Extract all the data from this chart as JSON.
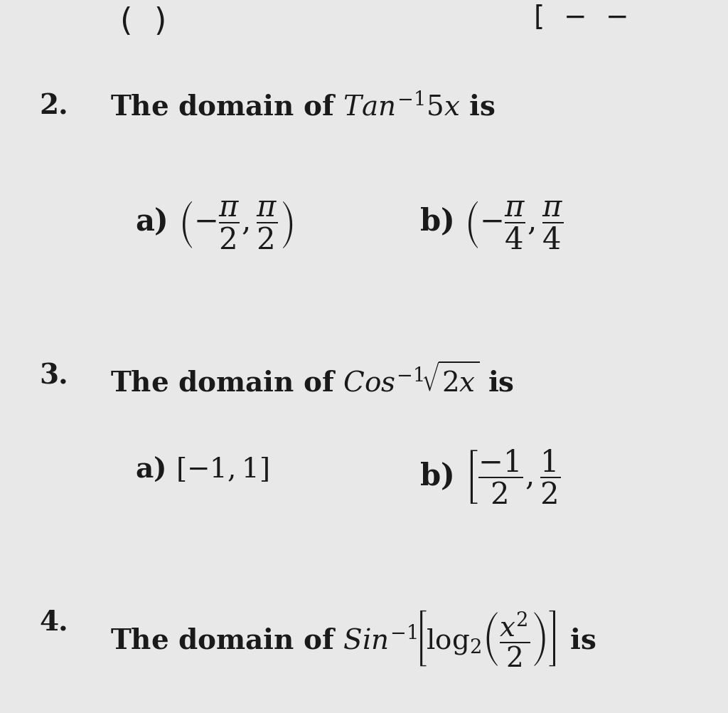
{
  "bg_color": "#e8e8e8",
  "text_color": "#1a1a1a",
  "top_partial_left": "( )",
  "top_partial_right": "[ — —",
  "q2_number": "2.",
  "q2_desc": "The domain of $\\mathit{Tan}^{-1}5x$ is",
  "q2_a": "a) $\\left(-\\dfrac{\\pi}{2},\\dfrac{\\pi}{2}\\right)$",
  "q2_b": "b) $\\left(-\\dfrac{\\pi}{4},\\dfrac{\\pi}{4}\\right.$",
  "q3_number": "3.",
  "q3_desc": "The domain of $\\mathit{Cos}^{-1}\\!\\sqrt{2x}$ is",
  "q3_a": "a) $[-1,1]$",
  "q3_b": "b) $\\left[\\dfrac{-1}{2},\\dfrac{1}{2}\\right.$",
  "q4_number": "4.",
  "q4_desc": "The domain of $\\mathit{Sin}^{-1}\\!\\left[\\log_2\\!\\left(\\dfrac{x^2}{2}\\right)\\right]$ is",
  "fontsize_bold": 28,
  "fontsize_math": 26,
  "fontsize_small": 22
}
